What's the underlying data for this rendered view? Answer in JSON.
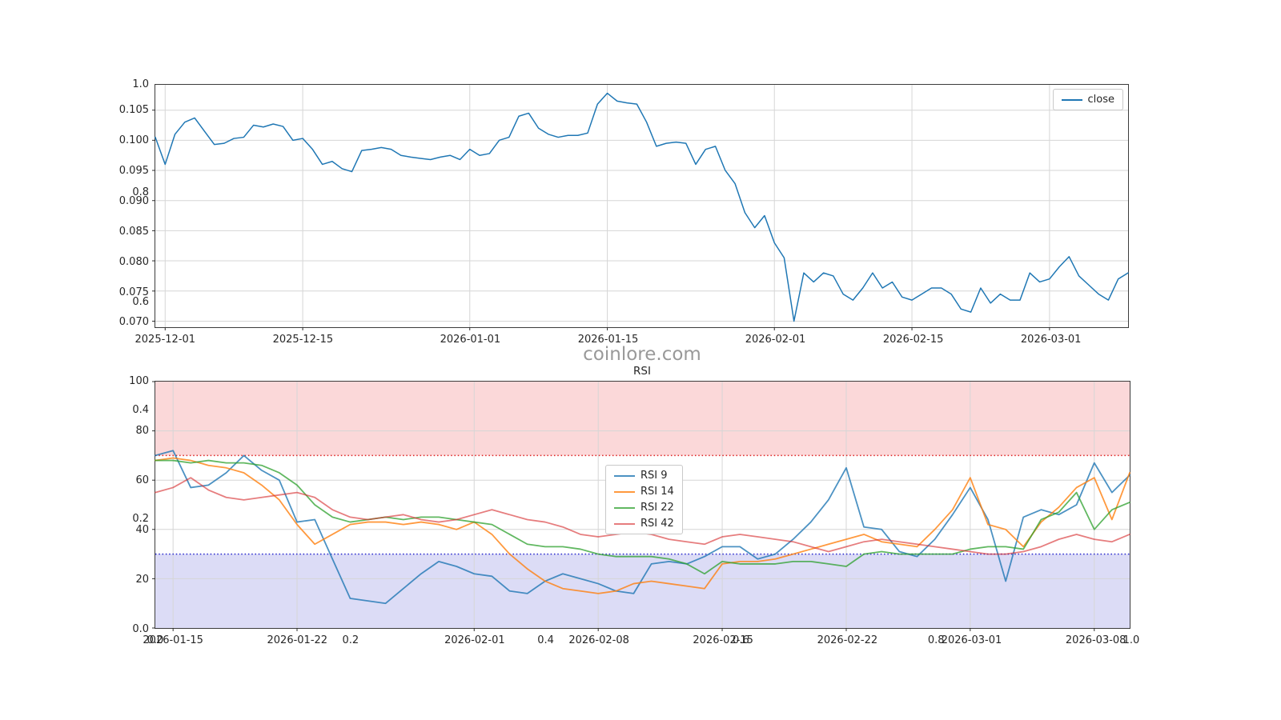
{
  "watermark": "coinlore.com",
  "chart_data": [
    {
      "id": "price",
      "type": "line",
      "title": "",
      "x_unit": "day",
      "x_start_date": "2025-11-30",
      "grid": true,
      "legend_position": "top-right",
      "ylim": [
        0.069,
        0.1092
      ],
      "y_ticks": [
        {
          "label": "0.105",
          "value": 0.105
        },
        {
          "label": "0.100",
          "value": 0.1
        },
        {
          "label": "0.095",
          "value": 0.095
        },
        {
          "label": "0.090",
          "value": 0.09
        },
        {
          "label": "0.085",
          "value": 0.085
        },
        {
          "label": "0.080",
          "value": 0.08
        },
        {
          "label": "0.075",
          "value": 0.075
        },
        {
          "label": "0.070",
          "value": 0.07
        }
      ],
      "twin_y_labels": [
        {
          "label": "1.0",
          "frac_top": 0.0
        },
        {
          "label": "0.8",
          "frac_top": 0.443
        },
        {
          "label": "0.6",
          "frac_top": 0.892
        }
      ],
      "x_ticks": [
        {
          "label": "2025-12-01",
          "index": 1
        },
        {
          "label": "2025-12-15",
          "index": 15
        },
        {
          "label": "2026-01-01",
          "index": 32
        },
        {
          "label": "2026-01-15",
          "index": 46
        },
        {
          "label": "2026-02-01",
          "index": 63
        },
        {
          "label": "2026-02-15",
          "index": 77
        },
        {
          "label": "2026-03-01",
          "index": 91
        }
      ],
      "series": [
        {
          "name": "close",
          "color": "#1f77b4",
          "width": 1.5,
          "values": [
            0.1005,
            0.096,
            0.101,
            0.103,
            0.1037,
            0.1015,
            0.0993,
            0.0995,
            0.1003,
            0.1005,
            0.1025,
            0.1022,
            0.1027,
            0.1023,
            0.1,
            0.1003,
            0.0985,
            0.096,
            0.0965,
            0.0953,
            0.0948,
            0.0983,
            0.0985,
            0.0988,
            0.0985,
            0.0975,
            0.0972,
            0.097,
            0.0968,
            0.0972,
            0.0975,
            0.0968,
            0.0985,
            0.0975,
            0.0978,
            0.1,
            0.1005,
            0.104,
            0.1045,
            0.102,
            0.101,
            0.1005,
            0.1008,
            0.1008,
            0.1012,
            0.106,
            0.1078,
            0.1065,
            0.1062,
            0.106,
            0.103,
            0.099,
            0.0995,
            0.0997,
            0.0995,
            0.096,
            0.0985,
            0.099,
            0.095,
            0.0928,
            0.088,
            0.0855,
            0.0875,
            0.083,
            0.0805,
            0.07,
            0.078,
            0.0765,
            0.078,
            0.0775,
            0.0745,
            0.0735,
            0.0755,
            0.078,
            0.0755,
            0.0765,
            0.074,
            0.0735,
            0.0745,
            0.0755,
            0.0755,
            0.0745,
            0.072,
            0.0715,
            0.0755,
            0.073,
            0.0745,
            0.0735,
            0.0735,
            0.078,
            0.0765,
            0.077,
            0.079,
            0.0807,
            0.0775,
            0.076,
            0.0745,
            0.0735,
            0.077,
            0.078
          ]
        }
      ]
    },
    {
      "id": "rsi",
      "type": "line",
      "title": "RSI",
      "x_unit": "day",
      "x_start_date": "2026-01-14",
      "grid": true,
      "legend_position": "center",
      "ylim": [
        0,
        100
      ],
      "overbought_level": 70,
      "oversold_level": 30,
      "bands": [
        {
          "from": 70,
          "to": 100,
          "color": "#fbd8d9"
        },
        {
          "from": 0,
          "to": 30,
          "color": "#dcdcf6"
        }
      ],
      "ref_lines": [
        {
          "value": 70,
          "color": "#dd2222"
        },
        {
          "value": 30,
          "color": "#2222cc"
        }
      ],
      "y_ticks": [
        {
          "label": "100",
          "value": 100
        },
        {
          "label": "80",
          "value": 80
        },
        {
          "label": "60",
          "value": 60
        },
        {
          "label": "40",
          "value": 40
        },
        {
          "label": "20",
          "value": 20
        },
        {
          "label": "0.0",
          "value": 0
        }
      ],
      "twin_y_labels": [
        {
          "label": "0.4",
          "frac_top": 0.116
        },
        {
          "label": "0.2",
          "frac_top": 0.555
        }
      ],
      "x_ticks": [
        {
          "label": "2026-01-15",
          "index": 1
        },
        {
          "label": "2026-01-22",
          "index": 8
        },
        {
          "label": "2026-02-01",
          "index": 18
        },
        {
          "label": "2026-02-08",
          "index": 25
        },
        {
          "label": "2026-02-15",
          "index": 32
        },
        {
          "label": "2026-02-22",
          "index": 39
        },
        {
          "label": "2026-03-01",
          "index": 46
        },
        {
          "label": "2026-03-08",
          "index": 53
        }
      ],
      "twin_x_labels": [
        "0.0",
        "0.2",
        "0.4",
        "0.6",
        "0.8",
        "1.0"
      ],
      "series": [
        {
          "name": "RSI 9",
          "color": "rgba(31,119,180,0.8)",
          "width": 1.8,
          "values": [
            70,
            72,
            57,
            58,
            63,
            70,
            64,
            60,
            43,
            44,
            28,
            12,
            11,
            10,
            16,
            22,
            27,
            25,
            22,
            21,
            15,
            14,
            19,
            22,
            20,
            18,
            15,
            14,
            26,
            27,
            26,
            29,
            33,
            33,
            28,
            30,
            36,
            43,
            52,
            65,
            41,
            40,
            31,
            29,
            36,
            46,
            57,
            44,
            19,
            45,
            48,
            46,
            50,
            67,
            55,
            62
          ]
        },
        {
          "name": "RSI 14",
          "color": "rgba(255,127,14,0.8)",
          "width": 1.8,
          "values": [
            68,
            69,
            68,
            66,
            65,
            63,
            58,
            52,
            42,
            34,
            38,
            42,
            43,
            43,
            42,
            43,
            42,
            40,
            43,
            38,
            30,
            24,
            19,
            16,
            15,
            14,
            15,
            18,
            19,
            18,
            17,
            16,
            26,
            27,
            27,
            28,
            30,
            32,
            34,
            36,
            38,
            35,
            34,
            33,
            40,
            48,
            61,
            42,
            40,
            33,
            43,
            49,
            57,
            61,
            44,
            63
          ]
        },
        {
          "name": "RSI 22",
          "color": "rgba(44,160,44,0.75)",
          "width": 1.8,
          "values": [
            68,
            68,
            67,
            68,
            67,
            67,
            66,
            63,
            58,
            50,
            45,
            43,
            44,
            45,
            44,
            45,
            45,
            44,
            43,
            42,
            38,
            34,
            33,
            33,
            32,
            30,
            29,
            29,
            29,
            28,
            26,
            22,
            27,
            26,
            26,
            26,
            27,
            27,
            26,
            25,
            30,
            31,
            30,
            30,
            30,
            30,
            32,
            33,
            33,
            32,
            44,
            47,
            55,
            40,
            48,
            51
          ]
        },
        {
          "name": "RSI 42",
          "color": "rgba(214,39,40,0.6)",
          "width": 1.8,
          "values": [
            55,
            57,
            61,
            56,
            53,
            52,
            53,
            54,
            55,
            53,
            48,
            45,
            44,
            45,
            46,
            44,
            43,
            44,
            46,
            48,
            46,
            44,
            43,
            41,
            38,
            37,
            38,
            39,
            38,
            36,
            35,
            34,
            37,
            38,
            37,
            36,
            35,
            33,
            31,
            33,
            35,
            36,
            35,
            34,
            33,
            32,
            31,
            30,
            30,
            31,
            33,
            36,
            38,
            36,
            35,
            38
          ]
        }
      ]
    }
  ]
}
